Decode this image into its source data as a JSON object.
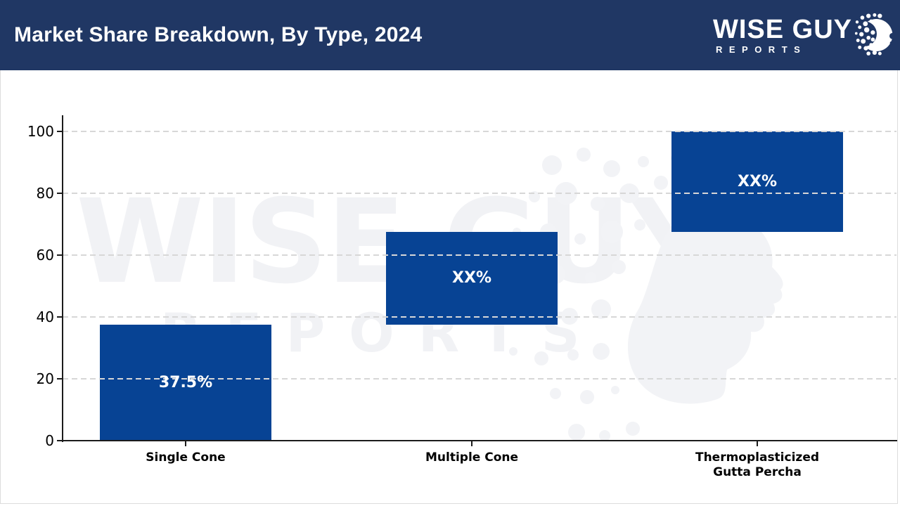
{
  "header": {
    "title": "Market Share Breakdown, By Type, 2024",
    "logo_line1": "WISE GUY",
    "logo_line2": "REPORTS",
    "bg_color": "#203764"
  },
  "watermark": {
    "line1": "WISE GUY",
    "line2": "REPORTS"
  },
  "chart_data": {
    "type": "bar",
    "variant": "floating-waterfall",
    "title": "Market Share Breakdown, By Type, 2024",
    "categories": [
      "Single Cone",
      "Multiple Cone",
      "Thermoplasticized Gutta Percha"
    ],
    "category_lines": [
      [
        "Single Cone"
      ],
      [
        "Multiple Cone"
      ],
      [
        "Thermoplasticized",
        "Gutta Percha"
      ]
    ],
    "bars": [
      {
        "category": "Single Cone",
        "start": 0,
        "end": 37.5,
        "label": "37.5%"
      },
      {
        "category": "Multiple Cone",
        "start": 37.5,
        "end": 67.5,
        "label": "XX%"
      },
      {
        "category": "Thermoplasticized Gutta Percha",
        "start": 67.5,
        "end": 100,
        "label": "XX%"
      }
    ],
    "ylim": [
      0,
      100
    ],
    "yticks": [
      0,
      20,
      40,
      60,
      80,
      100
    ],
    "bar_color": "#074394",
    "grid": "dashed-horizontal",
    "gridline_color": "#d7d7d7",
    "legend": null
  }
}
